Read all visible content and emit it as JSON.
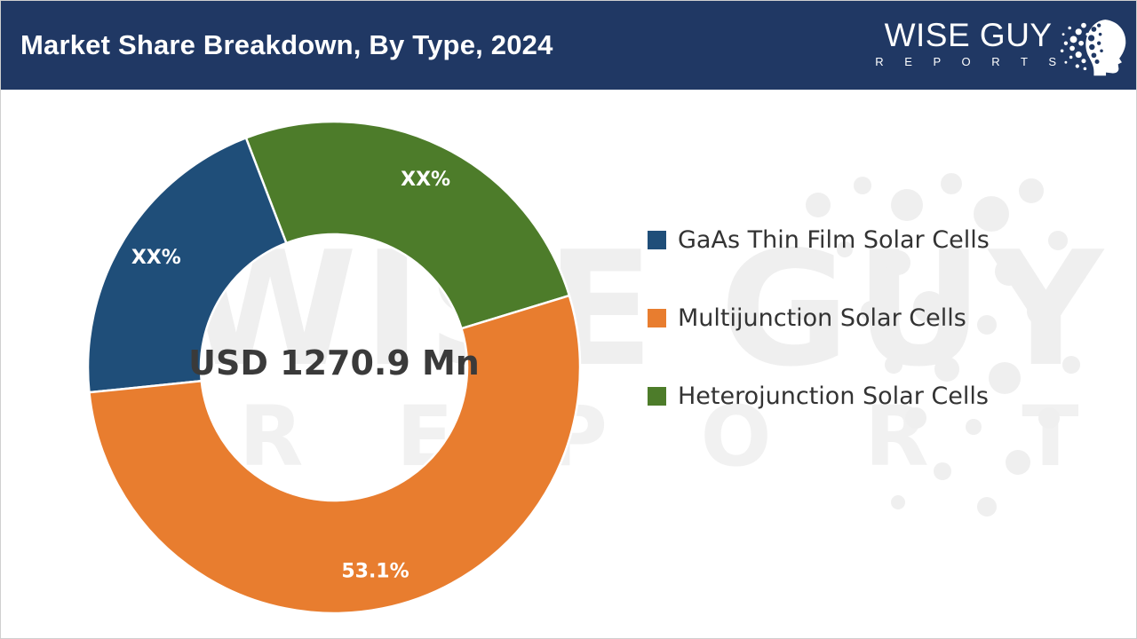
{
  "header": {
    "title": "Market Share Breakdown, By Type, 2024",
    "bg_color": "#203864",
    "logo": {
      "line1": "WISE GUY",
      "line2": "REPORTS"
    }
  },
  "watermark": {
    "line1": "WISE GUY",
    "line2": "R E P O R T S"
  },
  "chart_data": {
    "type": "pie",
    "donut": true,
    "title": "Market Share Breakdown, By Type, 2024",
    "center_label": "USD 1270.9 Mn",
    "start_angle_deg": 17,
    "direction": "ccw",
    "segments": [
      {
        "name": "Heterojunction Solar Cells",
        "display_label": "XX%",
        "pct": 26.1,
        "color": "#4d7c2a"
      },
      {
        "name": "GaAs Thin Film Solar Cells",
        "display_label": "XX%",
        "pct": 20.8,
        "color": "#1f4e79"
      },
      {
        "name": "Multijunction Solar Cells",
        "display_label": "53.1%",
        "pct": 53.1,
        "color": "#e87d2f"
      }
    ],
    "legend": {
      "position": "right",
      "items": [
        {
          "label": "GaAs Thin Film Solar Cells",
          "color": "#1f4e79"
        },
        {
          "label": "Multijunction Solar Cells",
          "color": "#e87d2f"
        },
        {
          "label": "Heterojunction Solar Cells",
          "color": "#4d7c2a"
        }
      ]
    }
  }
}
